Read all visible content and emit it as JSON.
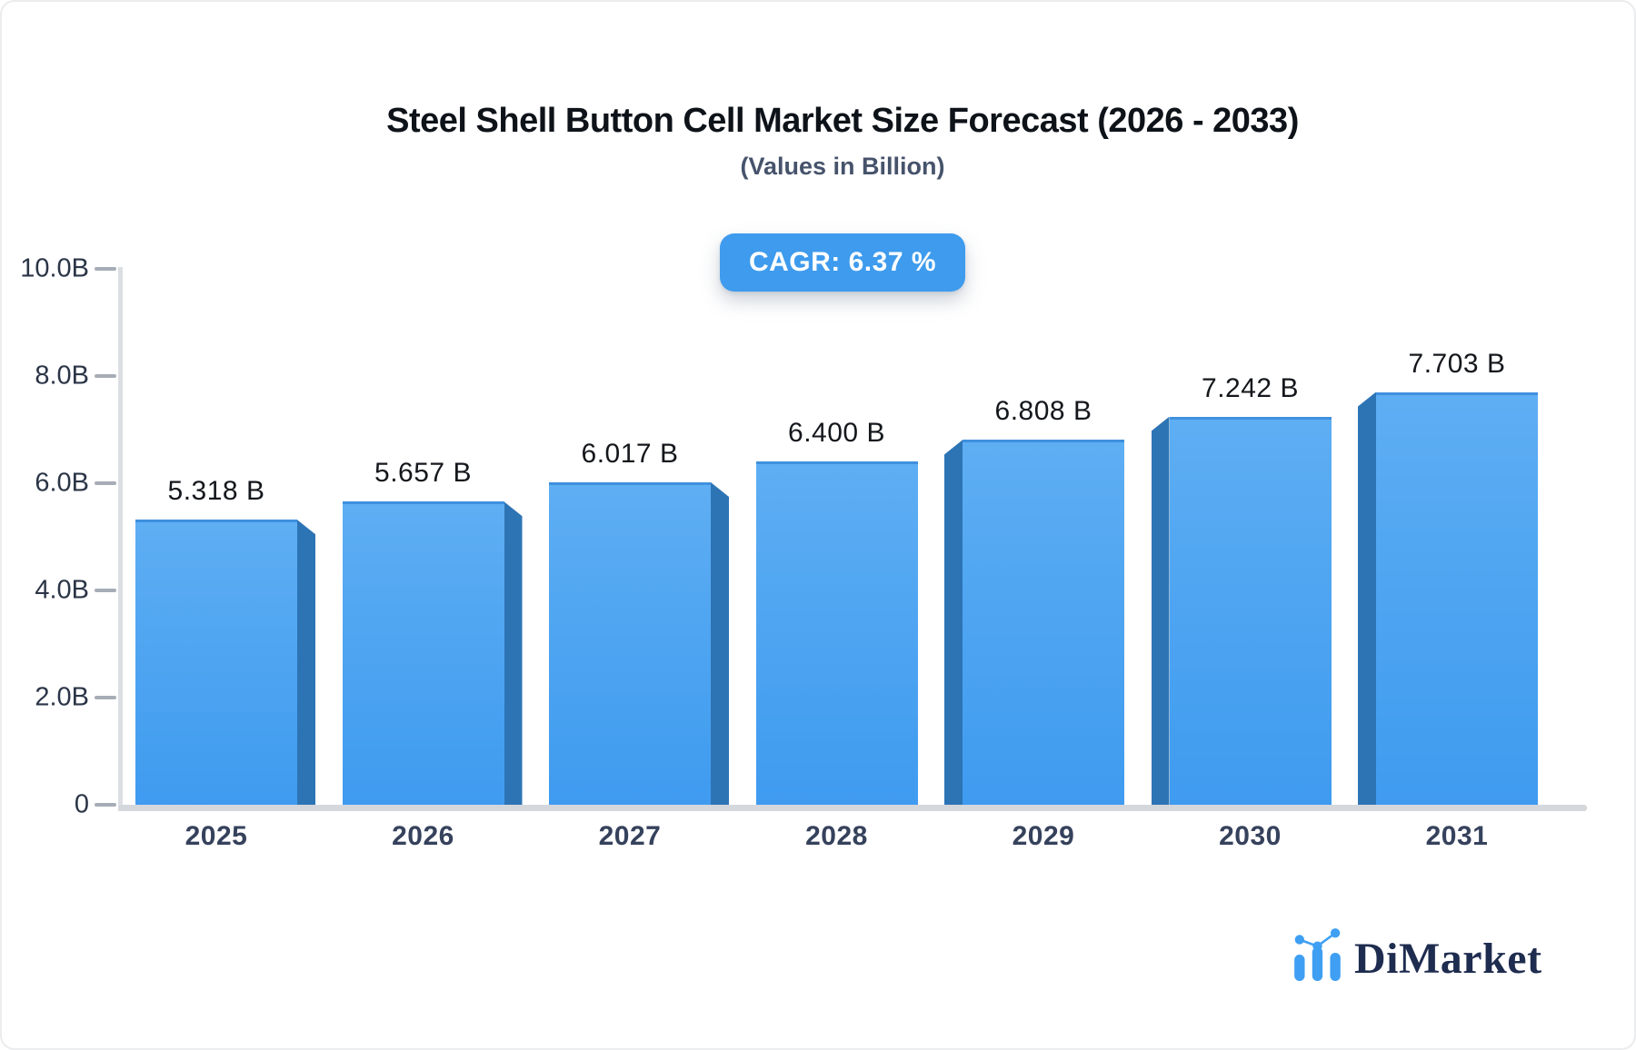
{
  "header": {
    "title": "Steel Shell Button Cell Market Size Forecast (2026 - 2033)",
    "subtitle": "(Values in Billion)"
  },
  "badge": {
    "label": "CAGR: 6.37 %"
  },
  "chart_data": {
    "type": "bar",
    "title": "Steel Shell Button Cell Market Size Forecast (2026 - 2033)",
    "subtitle": "(Values in Billion)",
    "categories": [
      "2025",
      "2026",
      "2027",
      "2028",
      "2029",
      "2030",
      "2031"
    ],
    "values": [
      5.318,
      5.657,
      6.017,
      6.4,
      6.808,
      7.242,
      7.703
    ],
    "value_labels": [
      "5.318 B",
      "5.657 B",
      "6.017 B",
      "6.400 B",
      "6.808 B",
      "7.242 B",
      "7.703 B"
    ],
    "ylabel": "",
    "xlabel": "",
    "ylim": [
      0,
      10
    ],
    "yticks": [
      {
        "value": 10,
        "label": "10.0B"
      },
      {
        "value": 8,
        "label": "8.0B"
      },
      {
        "value": 6,
        "label": "6.0B"
      },
      {
        "value": 4,
        "label": "4.0B"
      },
      {
        "value": 2,
        "label": "2.0B"
      },
      {
        "value": 0,
        "label": "0"
      }
    ],
    "grid": false,
    "legend": "none",
    "bar_color_top": "#5eaef3",
    "bar_color_bottom": "#3f9bf0",
    "bar_side_color": "#2d74b5",
    "cagr": "6.37 %"
  },
  "logo": {
    "text": "DiMarket",
    "accent_color": "#3e9ff3",
    "text_color": "#1e2c4f"
  }
}
